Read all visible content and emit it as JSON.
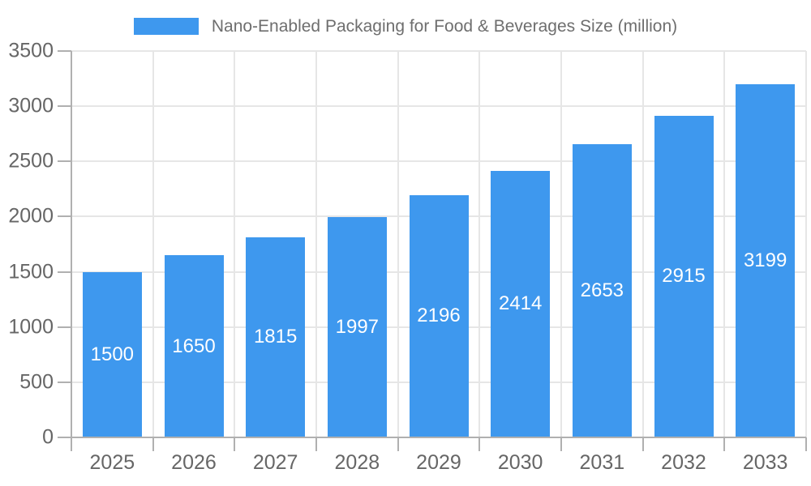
{
  "legend": {
    "label": "Nano-Enabled Packaging for Food & Beverages Size (million)"
  },
  "chart_data": {
    "type": "bar",
    "title": "Nano-Enabled Packaging for Food & Beverages Size (million)",
    "series_name": "Nano-Enabled Packaging for Food & Beverages Size (million)",
    "categories": [
      "2025",
      "2026",
      "2027",
      "2028",
      "2029",
      "2030",
      "2031",
      "2032",
      "2033"
    ],
    "values": [
      1500,
      1650,
      1815,
      1997,
      2196,
      2414,
      2653,
      2915,
      3199
    ],
    "bar_labels": [
      "1500",
      "1650",
      "1815",
      "1997",
      "2196",
      "2414",
      "2653",
      "2915",
      "3199"
    ],
    "xlabel": "",
    "ylabel": "",
    "ylim": [
      0,
      3500
    ],
    "ytick_step": 500,
    "yticks": [
      0,
      500,
      1000,
      1500,
      2000,
      2500,
      3000,
      3500
    ],
    "grid": "on",
    "legend_position": "top",
    "colors": {
      "bar": "#3E98EE",
      "bar_label": "#FFFFFF",
      "axis": "#B0B0B0",
      "gridline": "#E6E6E6",
      "tick_label": "#666666",
      "legend_text": "#6E6E6E",
      "background": "#FFFFFF"
    }
  }
}
